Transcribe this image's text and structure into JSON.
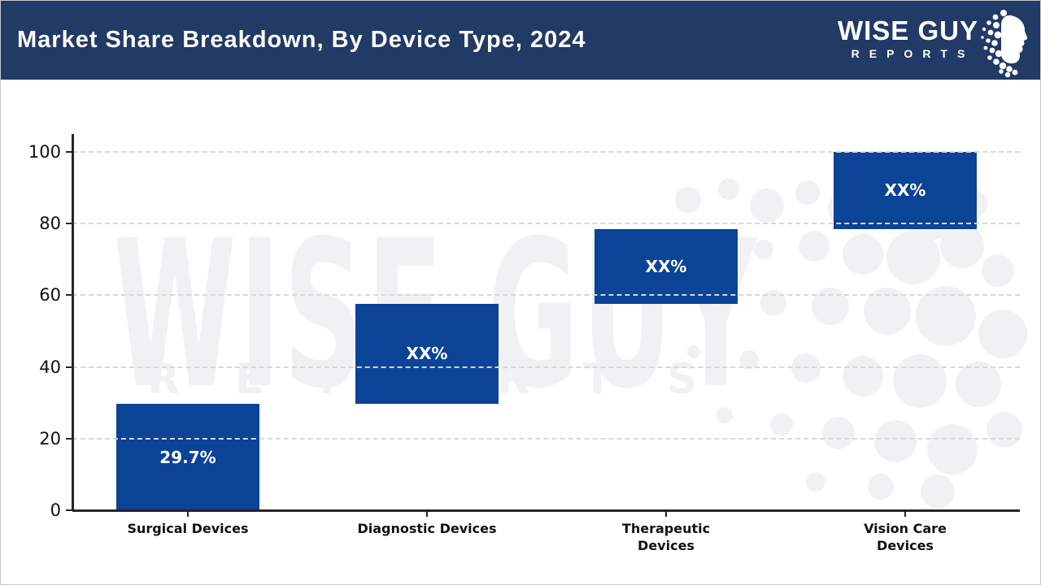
{
  "header": {
    "title": "Market Share Breakdown, By Device Type, 2024",
    "logo": {
      "line1": "WISE GUY",
      "line2": "REPORTS"
    }
  },
  "watermark": {
    "line1": "WISE GUY",
    "line2": "REPORTS"
  },
  "colors": {
    "header_bg": "#213a66",
    "bar": "#0b4397",
    "grid": "#d7d7d7",
    "axis": "#262626",
    "watermark": "#f1f1f4",
    "bar_label_text": "#ffffff"
  },
  "chart_data": {
    "type": "bar",
    "subtype": "waterfall",
    "title": "Market Share Breakdown, By Device Type, 2024",
    "categories": [
      "Surgical Devices",
      "Diagnostic Devices",
      "Therapeutic Devices",
      "Vision Care Devices"
    ],
    "segments": [
      {
        "category": "Surgical Devices",
        "start": 0,
        "end": 29.7,
        "label": "29.7%",
        "label_lines": [
          "Surgical Devices"
        ]
      },
      {
        "category": "Diagnostic Devices",
        "start": 29.7,
        "end": 57.7,
        "label": "XX%",
        "label_lines": [
          "Diagnostic Devices"
        ]
      },
      {
        "category": "Therapeutic Devices",
        "start": 57.7,
        "end": 78.5,
        "label": "XX%",
        "label_lines": [
          "Therapeutic",
          "Devices"
        ]
      },
      {
        "category": "Vision Care Devices",
        "start": 78.5,
        "end": 100,
        "label": "XX%",
        "label_lines": [
          "Vision Care",
          "Devices"
        ]
      }
    ],
    "ylim": [
      0,
      100
    ],
    "yticks": [
      0,
      20,
      40,
      60,
      80,
      100
    ],
    "grid": "horizontal-dashed",
    "legend": "none"
  }
}
